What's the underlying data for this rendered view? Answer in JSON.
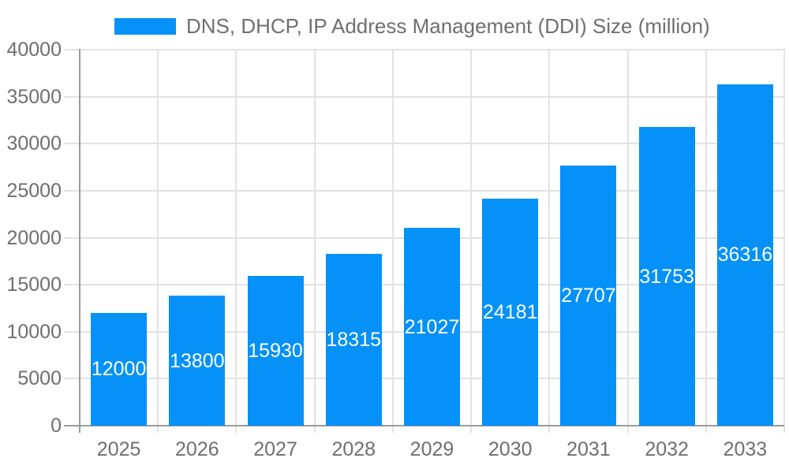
{
  "chart_data": {
    "type": "bar",
    "title": "DNS, DHCP, IP Address Management (DDI) Size (million)",
    "categories": [
      "2025",
      "2026",
      "2027",
      "2028",
      "2029",
      "2030",
      "2031",
      "2032",
      "2033"
    ],
    "series": [
      {
        "name": "DNS, DHCP, IP Address Management (DDI) Size (million)",
        "values": [
          12000,
          13800,
          15930,
          18315,
          21027,
          24181,
          27707,
          31753,
          36316
        ]
      }
    ],
    "xlabel": "",
    "ylabel": "",
    "ylim": [
      0,
      40000
    ],
    "ytick_step": 5000,
    "grid": true,
    "legend_position": "top",
    "bar_label_position": "inside-center",
    "colors": {
      "bar": "#0591F8",
      "bar_label": "#FFFFFF",
      "axis": "#9B9B9B",
      "grid": "#E2E2E2",
      "text": "#6F6F6F",
      "background": "#FFFFFF"
    }
  }
}
